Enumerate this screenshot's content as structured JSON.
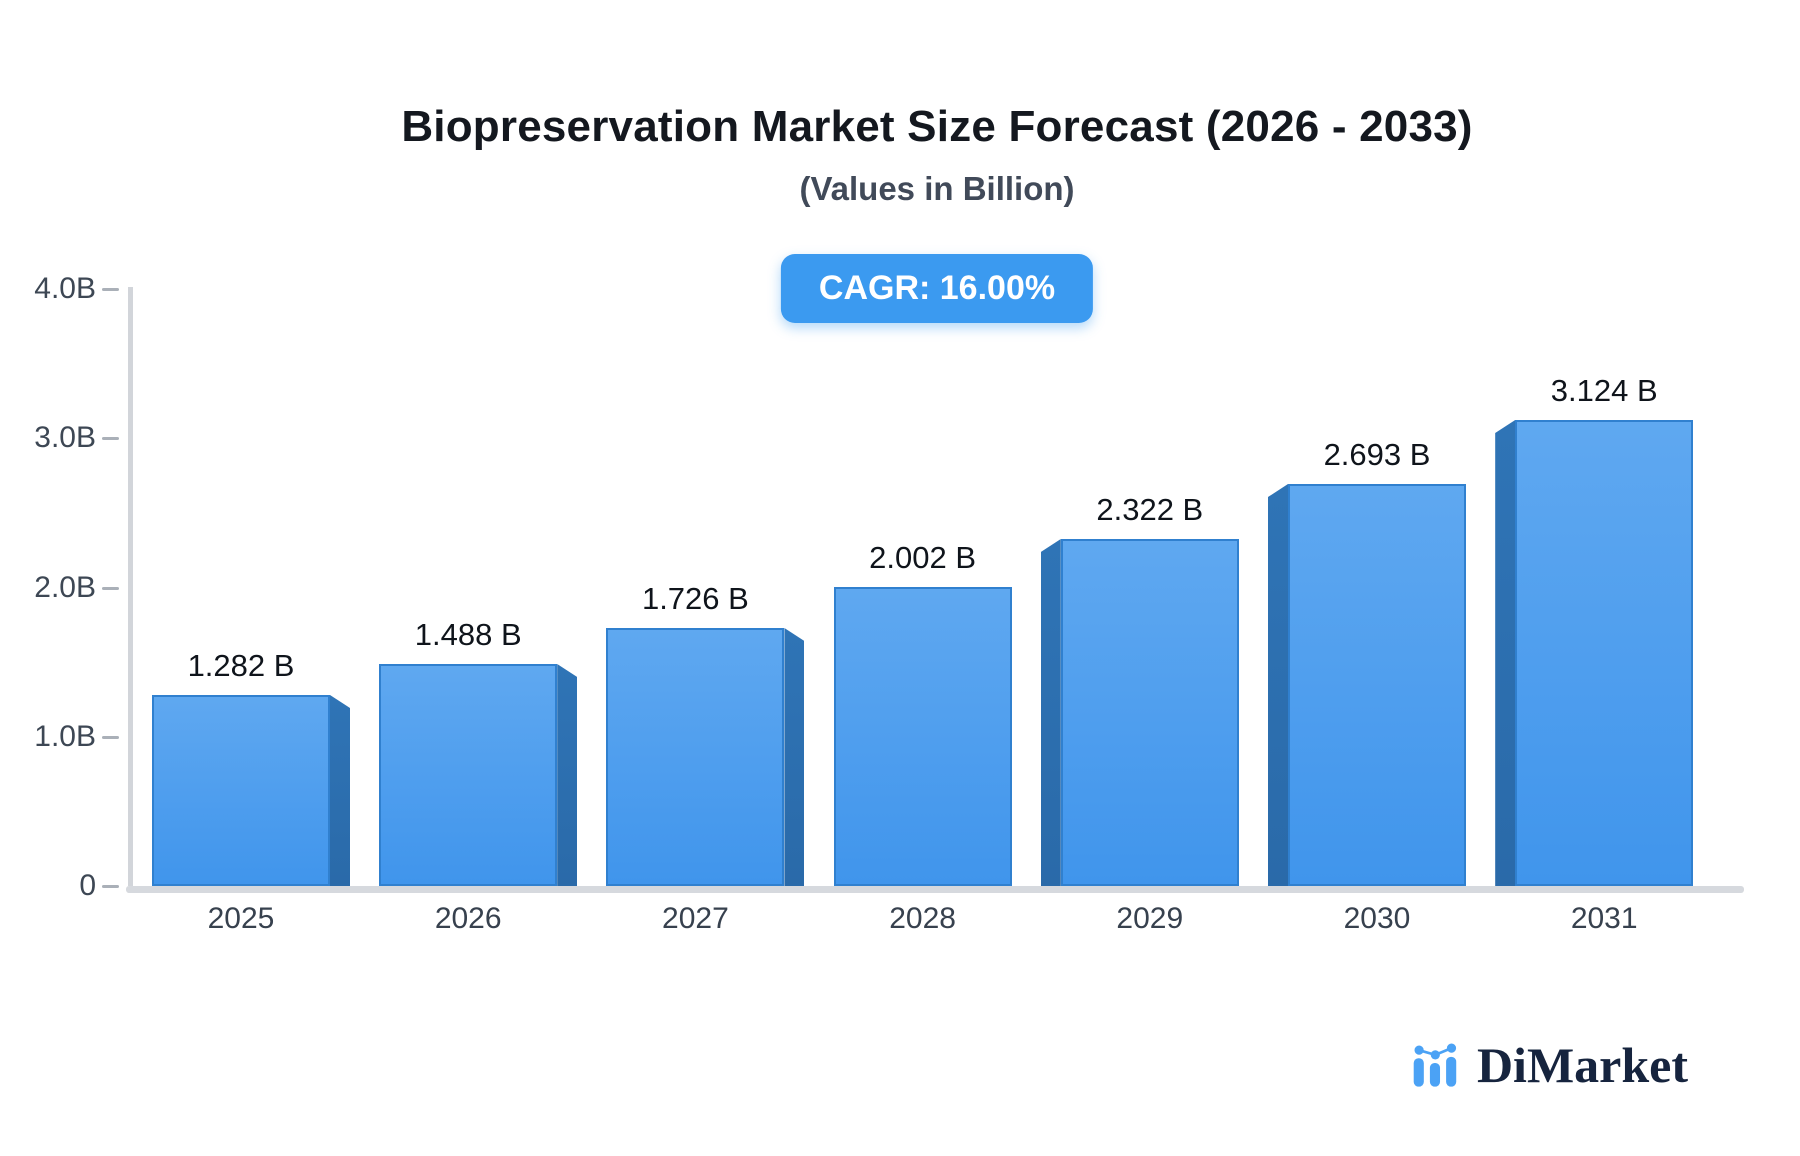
{
  "header": {
    "title": "Biopreservation Market Size Forecast (2026 - 2033)",
    "subtitle": "(Values in Billion)",
    "cagr_badge": "CAGR: 16.00%"
  },
  "chart_data": {
    "type": "bar",
    "style": "3d-extruded-bars",
    "title": "Biopreservation Market Size Forecast (2026 - 2033)",
    "subtitle": "(Values in Billion)",
    "cagr_percent": 16.0,
    "categories": [
      "2025",
      "2026",
      "2027",
      "2028",
      "2029",
      "2030",
      "2031"
    ],
    "values": [
      1.282,
      1.488,
      1.726,
      2.002,
      2.322,
      2.693,
      3.124
    ],
    "value_labels": [
      "1.282 B",
      "1.488 B",
      "1.726 B",
      "2.002 B",
      "2.322 B",
      "2.693 B",
      "3.124 B"
    ],
    "unit": "Billion",
    "ylim": [
      0,
      4.0
    ],
    "yticks": [
      {
        "label": "4.0B",
        "value": 4.0
      },
      {
        "label": "3.0B",
        "value": 3.0
      },
      {
        "label": "2.0B",
        "value": 2.0
      },
      {
        "label": "1.0B",
        "value": 1.0
      },
      {
        "label": "0",
        "value": 0.0
      }
    ],
    "grid": false,
    "legend_position": "none"
  },
  "branding": {
    "logo_text": "DiMarket",
    "logo_icon": "bar-chart-with-trendline-icon"
  },
  "colors": {
    "bar_face_top": "#5FA8F0",
    "bar_face_bottom": "#4095EC",
    "bar_border": "#3080CF",
    "bar_side": "#2F74B6",
    "bar_side_dark": "#2A6AA9",
    "badge_bg": "#3B9AF0",
    "badge_text": "#FFFFFF",
    "axis_line": "#D2D5DA",
    "baseline": "#D6D9DE",
    "tick_dash": "#AAB0B8",
    "tick_label": "#3D4754",
    "category_label": "#37414E",
    "value_label": "#0F141B",
    "title_text": "#14181F",
    "subtitle_text": "#414A59",
    "logo_text_color": "#16243E",
    "logo_icon_color": "#4BA2F5"
  }
}
